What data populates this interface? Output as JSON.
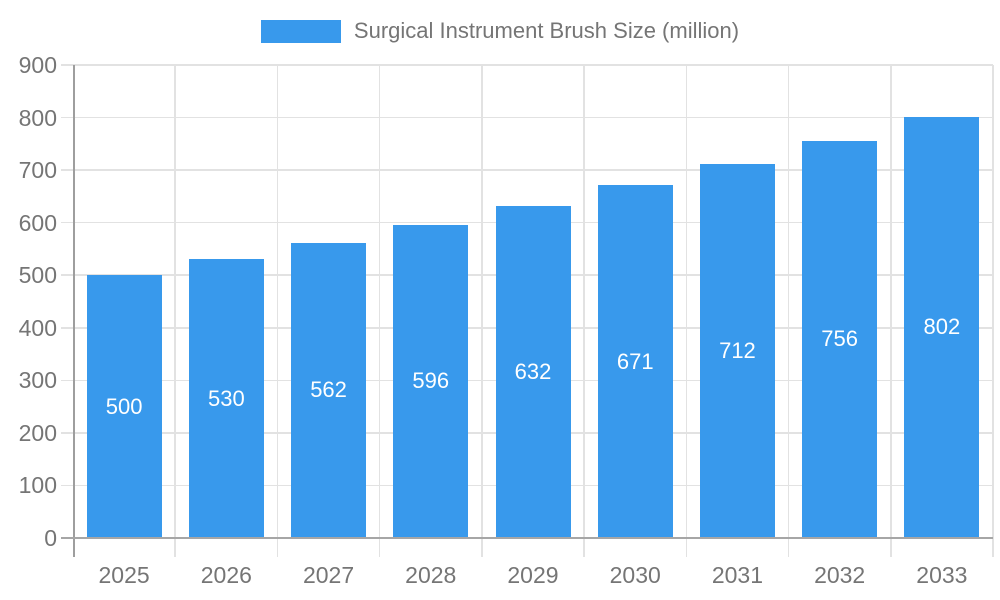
{
  "legend": {
    "label": "Surgical Instrument Brush Size (million)"
  },
  "chart_data": {
    "type": "bar",
    "title": "Surgical Instrument Brush Size (million)",
    "series_name": "Surgical Instrument Brush Size (million)",
    "categories": [
      "2025",
      "2026",
      "2027",
      "2028",
      "2029",
      "2030",
      "2031",
      "2032",
      "2033"
    ],
    "values": [
      500,
      530,
      562,
      596,
      632,
      671,
      712,
      756,
      802
    ],
    "xlabel": "",
    "ylabel": "",
    "ylim": [
      0,
      900
    ],
    "y_ticks": [
      0,
      100,
      200,
      300,
      400,
      500,
      600,
      700,
      800,
      900
    ],
    "grid": true,
    "legend_position": "top",
    "value_label_position": "inside-center",
    "colors": {
      "bar": "#3899EC",
      "axis_line": "#9E9E9E",
      "baseline": "#A6A6A6",
      "gridline": "#E2E2E2",
      "axis_text": "#757575",
      "value_text": "#FFFFFF",
      "background": "#FFFFFF"
    }
  }
}
